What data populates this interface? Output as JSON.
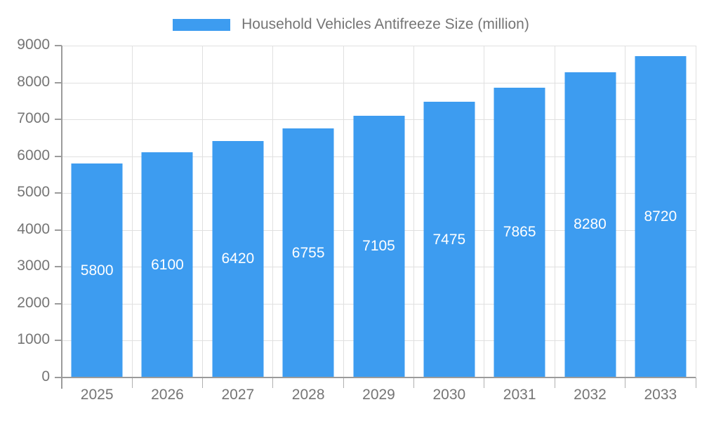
{
  "legend": {
    "label": "Household Vehicles Antifreeze Size (million)"
  },
  "colors": {
    "bar": "#3d9cf0",
    "value_label": "#ffffff",
    "axis_text": "#757575",
    "gridline": "#e0e0e0",
    "axis_line": "#9b9b9b"
  },
  "chart_data": {
    "type": "bar",
    "title": "Household Vehicles Antifreeze Size (million)",
    "categories": [
      "2025",
      "2026",
      "2027",
      "2028",
      "2029",
      "2030",
      "2031",
      "2032",
      "2033"
    ],
    "values": [
      5800,
      6100,
      6420,
      6755,
      7105,
      7475,
      7865,
      8280,
      8720
    ],
    "value_labels": [
      "5800",
      "6100",
      "6420",
      "6755",
      "7105",
      "7475",
      "7865",
      "8280",
      "8720"
    ],
    "xlabel": "",
    "ylabel": "",
    "ylim": [
      0,
      9000
    ],
    "yticks": [
      0,
      1000,
      2000,
      3000,
      4000,
      5000,
      6000,
      7000,
      8000,
      9000
    ],
    "grid": true,
    "legend_position": "top-center",
    "value_label_position": "center-of-bar"
  }
}
